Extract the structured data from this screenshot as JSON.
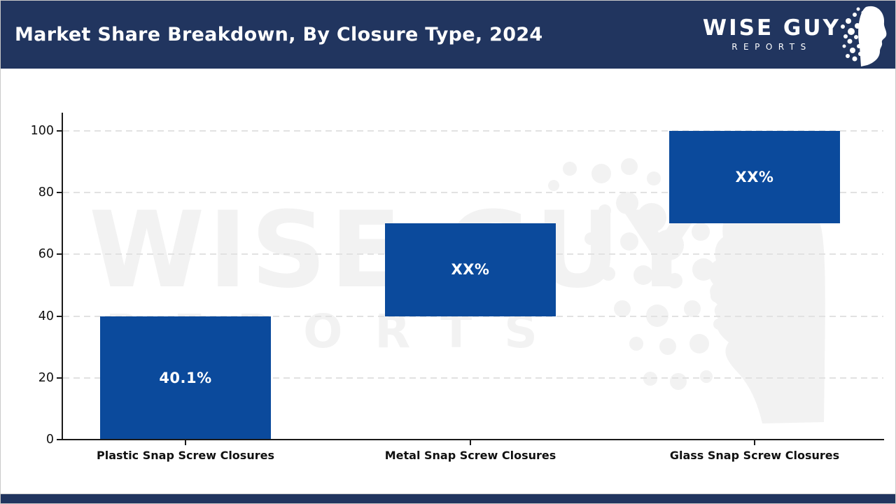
{
  "header": {
    "title": "Market Share Breakdown, By Closure Type, 2024",
    "logo": {
      "brand": "WISE GUY",
      "sub": "REPORTS"
    }
  },
  "watermark": {
    "line1": "WISE GUY",
    "line2": "REPORTS"
  },
  "chart_data": {
    "type": "bar",
    "subtype": "floating-breakdown-bars",
    "title": "Market Share Breakdown, By Closure Type, 2024",
    "categories": [
      "Plastic Snap Screw Closures",
      "Metal Snap Screw Closures",
      "Glass Snap Screw Closures"
    ],
    "series": [
      {
        "name": "Market share (%)",
        "ranges": [
          [
            0,
            40
          ],
          [
            40,
            70
          ],
          [
            70,
            100
          ]
        ],
        "labels": [
          "40.1%",
          "XX%",
          "XX%"
        ]
      }
    ],
    "xlabel": "",
    "ylabel": "",
    "ylim": [
      0,
      105
    ],
    "yticks": [
      0,
      20,
      40,
      60,
      80,
      100
    ],
    "grid": "horizontal-dashed",
    "legend": "none",
    "bar_color": "#0b4a9c",
    "bar_label_color": "#ffffff"
  },
  "colors": {
    "header_bg": "#21355f",
    "footer_bg": "#21355f",
    "bar": "#0b4a9c",
    "gridline": "#e2e2e2",
    "axis": "#1a1a1a",
    "watermark": "#f2f2f2",
    "title_text": "#ffffff"
  }
}
